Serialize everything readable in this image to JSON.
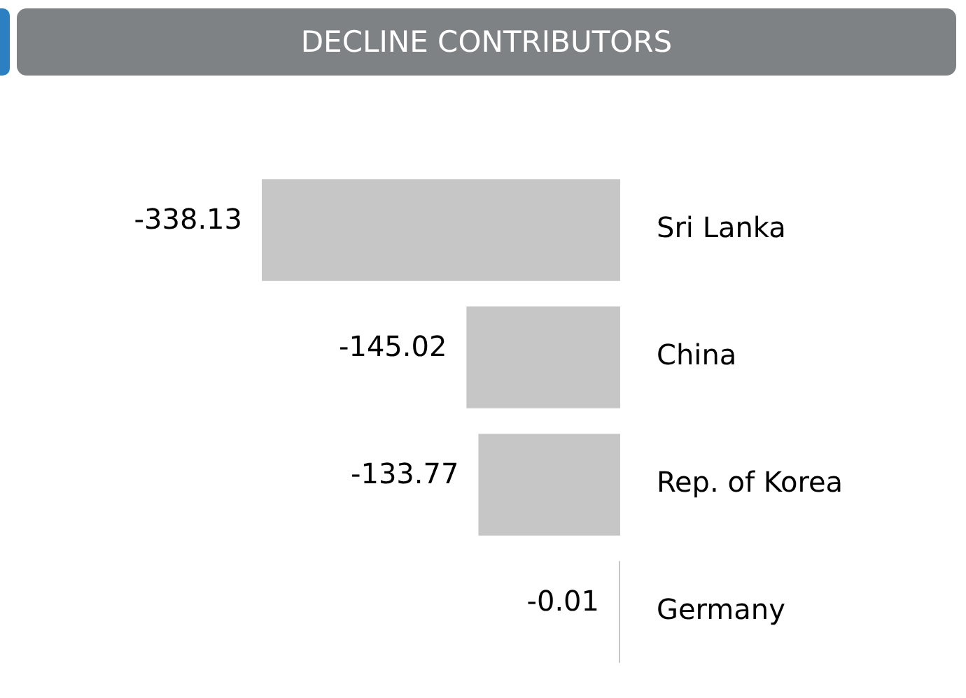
{
  "chart_data": {
    "type": "bar",
    "orientation": "horizontal",
    "title": "DECLINE CONTRIBUTORS",
    "categories": [
      "Sri Lanka",
      "China",
      "Rep. of Korea",
      "Germany"
    ],
    "values": [
      -338.13,
      -145.02,
      -133.77,
      -0.01
    ],
    "color": "#c6c6c6",
    "xlim": [
      -338.13,
      0
    ],
    "data_labels": true,
    "legend": false,
    "tick_labels": "y"
  }
}
